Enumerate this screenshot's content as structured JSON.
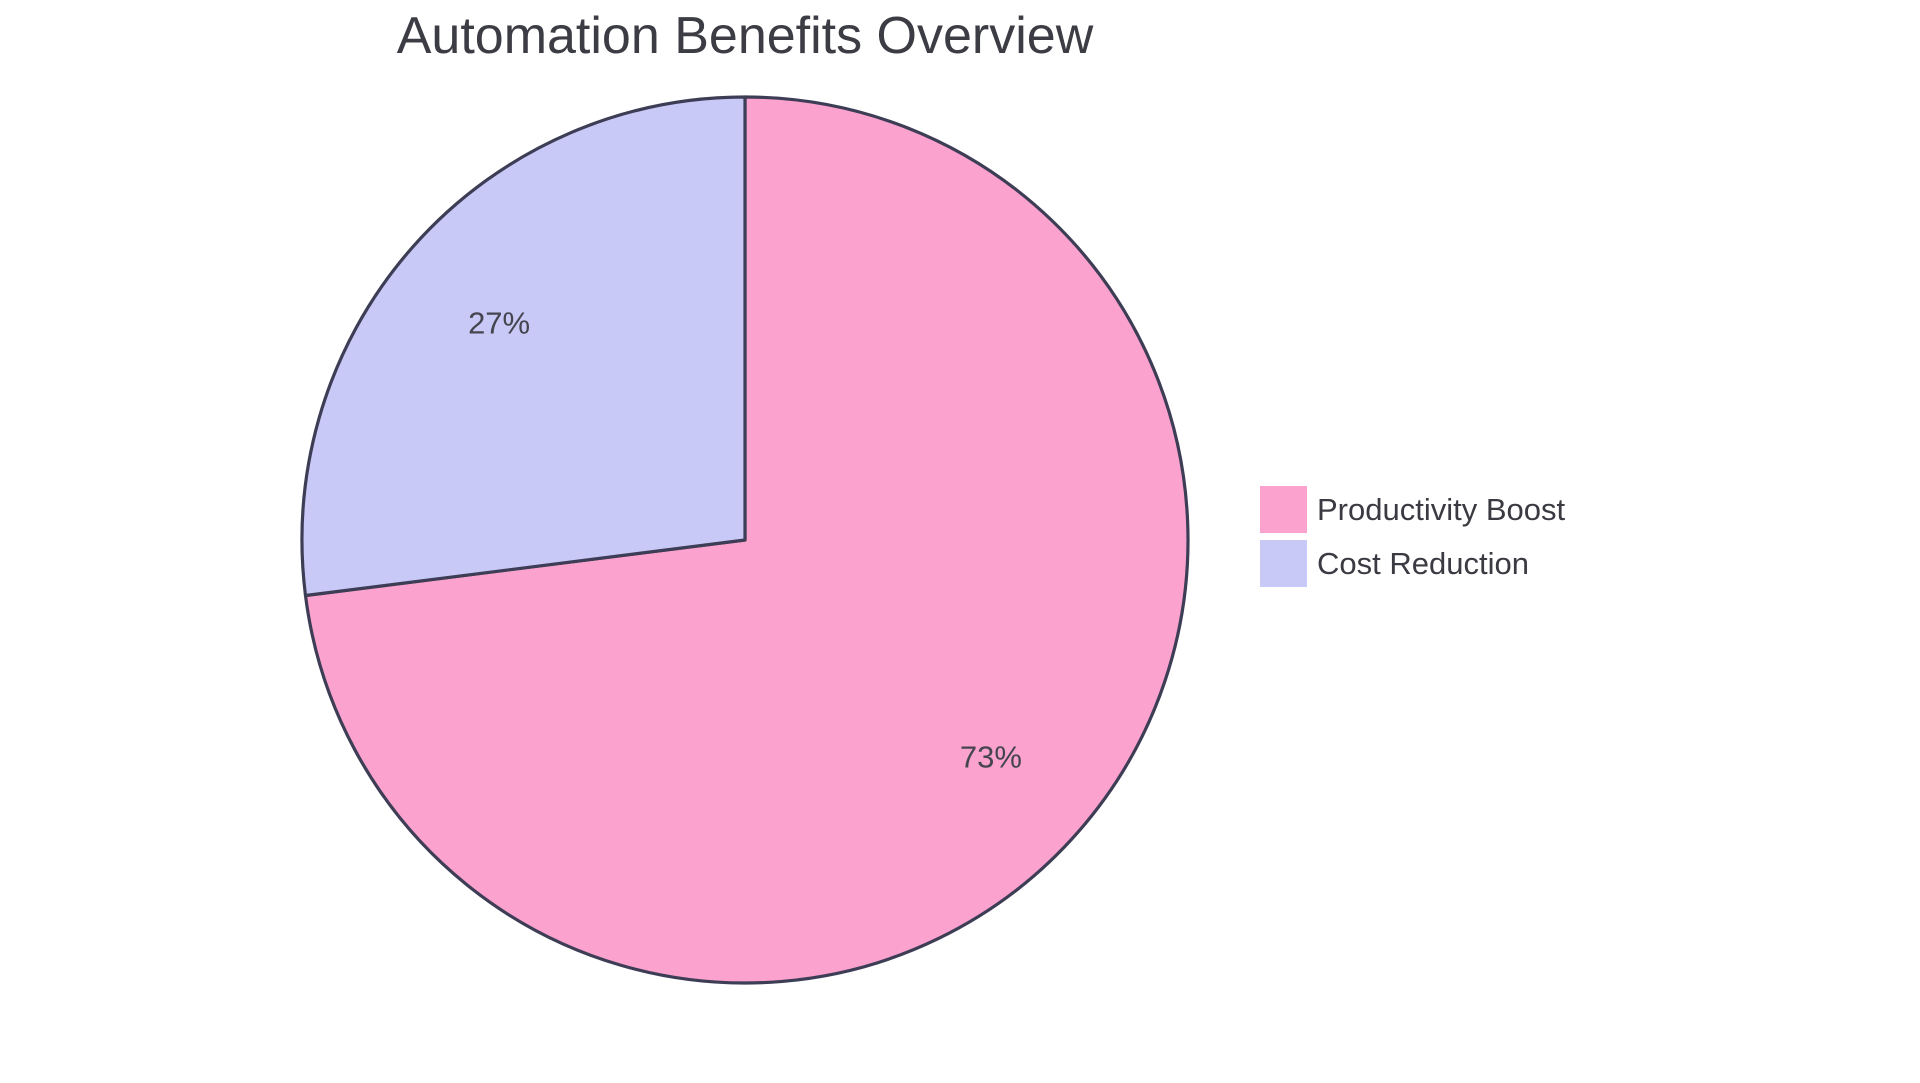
{
  "title": "Automation Benefits Overview",
  "chart_data": {
    "type": "pie",
    "title": "Automation Benefits Overview",
    "labels": [
      "Productivity Boost",
      "Cost Reduction"
    ],
    "values": [
      73,
      27
    ],
    "slice_labels": [
      "73%",
      "27%"
    ],
    "colors": [
      "#FCA2CE",
      "#C9C9F7"
    ],
    "outline_color": "#3d3d56",
    "slice_label_color": "#45454f",
    "title_color": "#3c3c44",
    "background_color": "#ffffff",
    "start_position": "top",
    "direction": "clockwise",
    "legend_position": "right",
    "grid": false
  },
  "legend": {
    "items": [
      {
        "label": "Productivity Boost",
        "color": "#FCA2CE"
      },
      {
        "label": "Cost Reduction",
        "color": "#C9C9F7"
      }
    ]
  }
}
